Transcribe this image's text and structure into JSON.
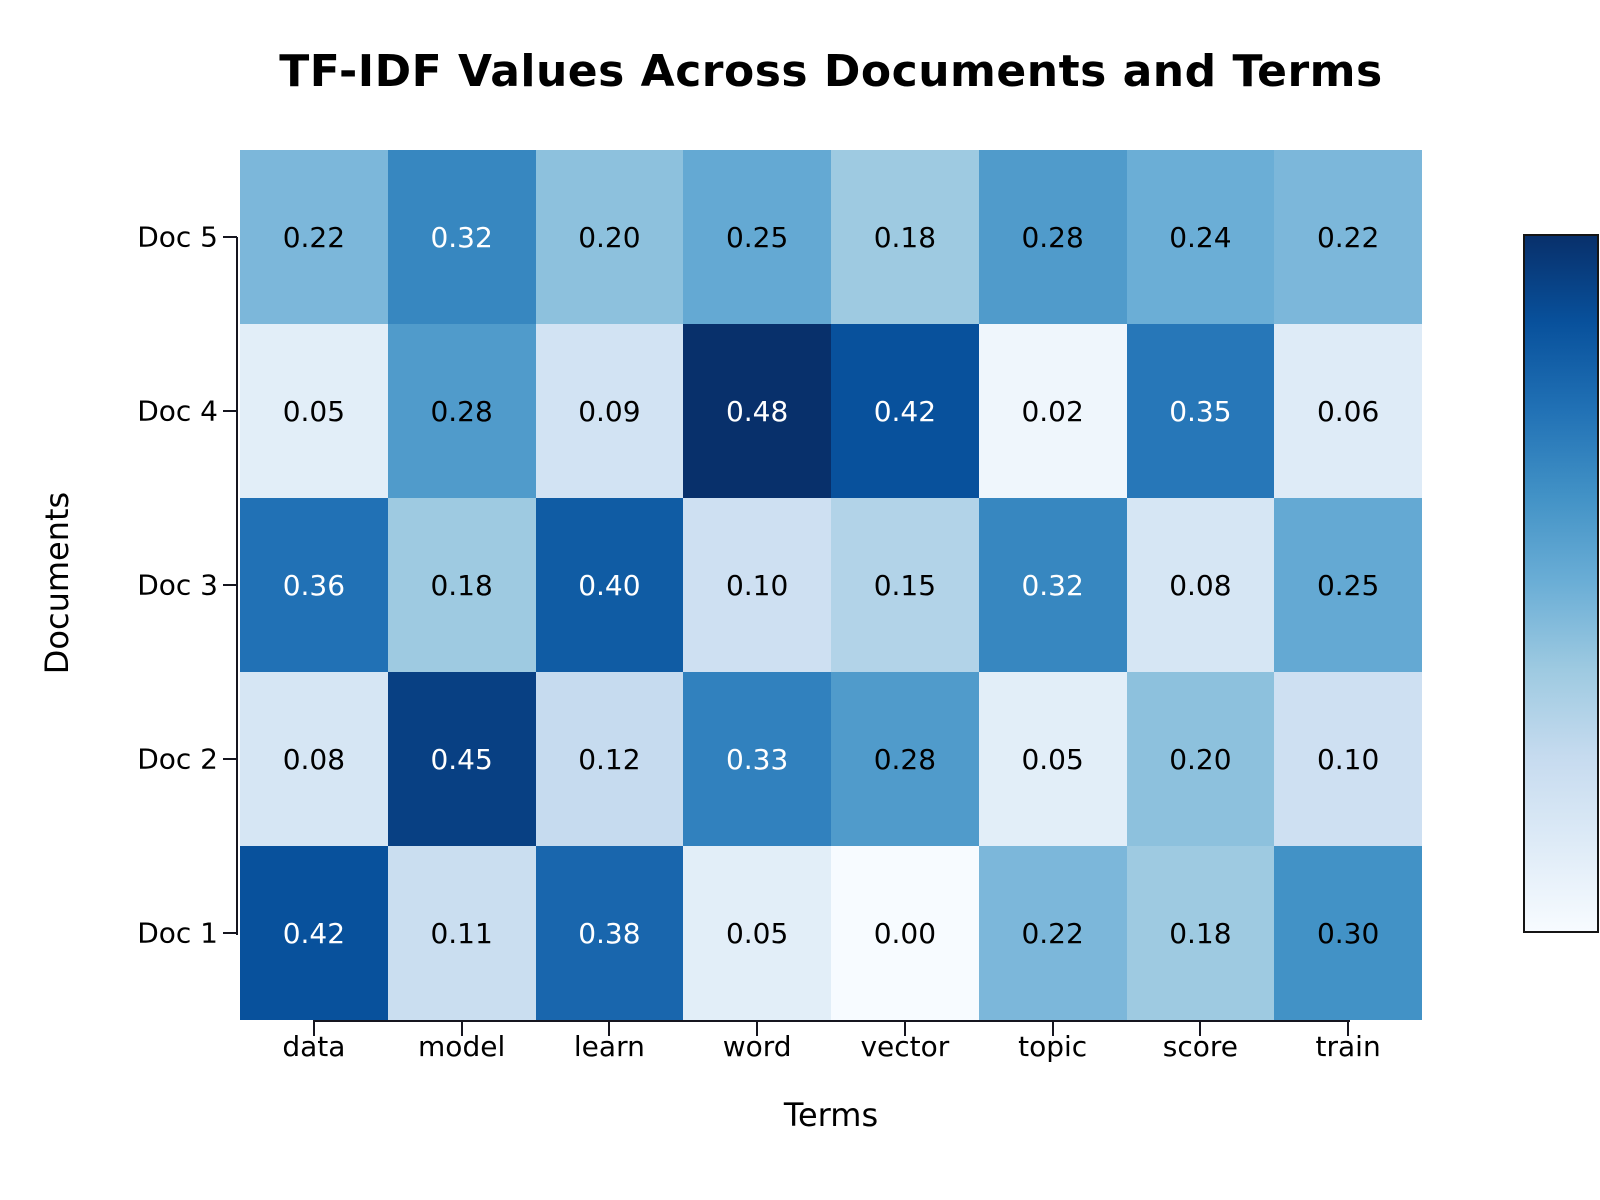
{
  "chart_data": {
    "type": "heatmap",
    "title": "TF-IDF Values Across Documents and Terms",
    "xlabel": "Terms",
    "ylabel": "Documents",
    "columns": [
      "data",
      "model",
      "learn",
      "word",
      "vector",
      "topic",
      "score",
      "train"
    ],
    "rows_top_to_bottom": [
      {
        "label": "Doc 5",
        "values": [
          0.22,
          0.32,
          0.2,
          0.25,
          0.18,
          0.28,
          0.24,
          0.22
        ]
      },
      {
        "label": "Doc 4",
        "values": [
          0.05,
          0.28,
          0.09,
          0.48,
          0.42,
          0.02,
          0.35,
          0.06
        ]
      },
      {
        "label": "Doc 3",
        "values": [
          0.36,
          0.18,
          0.4,
          0.1,
          0.15,
          0.32,
          0.08,
          0.25
        ]
      },
      {
        "label": "Doc 2",
        "values": [
          0.08,
          0.45,
          0.12,
          0.33,
          0.28,
          0.05,
          0.2,
          0.1
        ]
      },
      {
        "label": "Doc 1",
        "values": [
          0.42,
          0.11,
          0.38,
          0.05,
          0.0,
          0.22,
          0.18,
          0.3
        ]
      }
    ],
    "value_format": "0.00",
    "vmin": 0.0,
    "vmax": 0.48,
    "colormap": "Blues",
    "colormap_anchors": [
      {
        "pos": 0.0,
        "hex": "#f7fbff"
      },
      {
        "pos": 0.125,
        "hex": "#deebf7"
      },
      {
        "pos": 0.25,
        "hex": "#c6dbef"
      },
      {
        "pos": 0.375,
        "hex": "#9ecae1"
      },
      {
        "pos": 0.5,
        "hex": "#6baed6"
      },
      {
        "pos": 0.625,
        "hex": "#4292c6"
      },
      {
        "pos": 0.75,
        "hex": "#2171b5"
      },
      {
        "pos": 0.875,
        "hex": "#08519c"
      },
      {
        "pos": 1.0,
        "hex": "#08306b"
      }
    ],
    "cell_text_color_dark": "#000000",
    "cell_text_color_light": "#ffffff",
    "cell_text_light_threshold": 0.65,
    "colorbar": {
      "position": "right",
      "orientation": "vertical",
      "tick_labels_visible": false
    },
    "grid": false,
    "legend": "none"
  }
}
